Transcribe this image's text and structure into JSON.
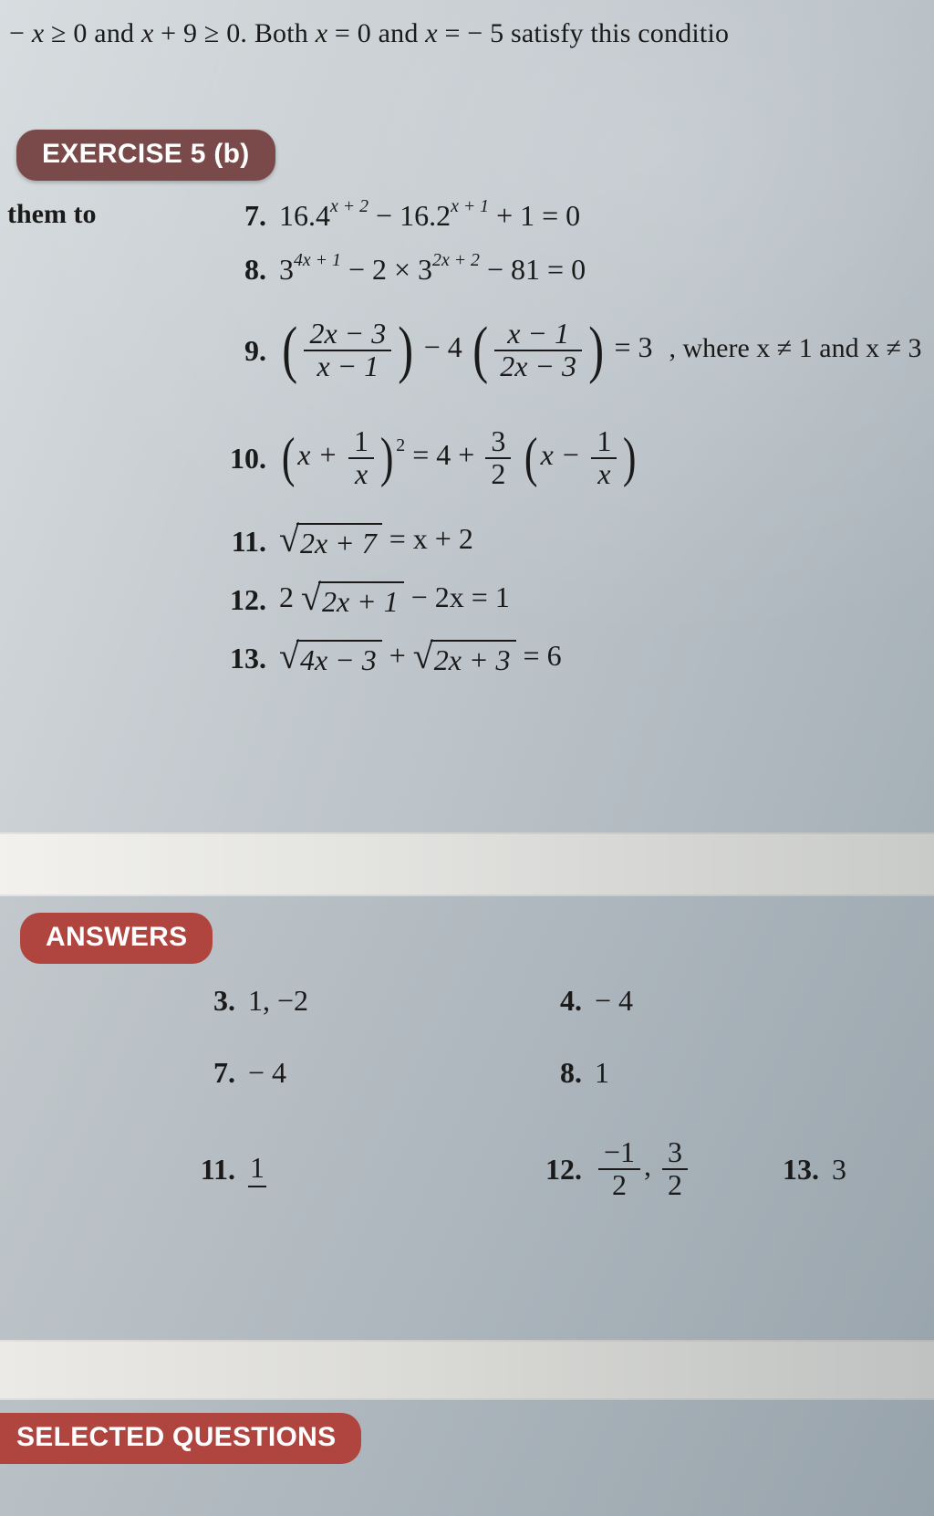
{
  "colors": {
    "text": "#1a1a1a",
    "pill_exercise_bg": "#7a4a4a",
    "pill_answers_bg": "#b0443f",
    "pill_text": "#ffffff"
  },
  "typography": {
    "body_family": "Times New Roman",
    "body_size_pt": 24,
    "pill_family": "Arial",
    "pill_weight": 700
  },
  "top_condition": {
    "line1_prefix": "− ",
    "line1_mid": " ≥ 0 and ",
    "line1_suffix": " + 9 ≥ 0. Both ",
    "eq1": " = 0 and ",
    "eq2": " = − 5 satisfy this conditio"
  },
  "labels": {
    "exercise": "EXERCISE 5 (b)",
    "them_to": "them to",
    "answers": "ANSWERS",
    "selected": "SELECTED QUESTIONS"
  },
  "problems": {
    "p7": {
      "num": "7.",
      "a": "16.4",
      "exp1": "x + 2",
      "b": " − 16.2",
      "exp2": "x + 1",
      "c": " + 1 = 0"
    },
    "p8": {
      "num": "8.",
      "a": "3",
      "exp1": "4x + 1",
      "b": " − 2 × 3",
      "exp2": "2x + 2",
      "c": " − 81 = 0"
    },
    "p9": {
      "num": "9.",
      "f1n": "2x − 3",
      "f1d": "x − 1",
      "mid": " − 4",
      "f2n": "x − 1",
      "f2d": "2x − 3",
      "rhs": " = 3",
      "where": ", where x ≠ 1 and x ≠ 3"
    },
    "p10": {
      "num": "10.",
      "lhs_inner_a": "x + ",
      "lhs_frac_n": "1",
      "lhs_frac_d": "x",
      "lhs_pow": "2",
      "eq": " = 4 + ",
      "r_frac_n": "3",
      "r_frac_d": "2",
      "r_inner_a": "x − ",
      "r_frac2_n": "1",
      "r_frac2_d": "x"
    },
    "p11": {
      "num": "11.",
      "rad": "2x + 7",
      "rhs": " = x + 2"
    },
    "p12": {
      "num": "12.",
      "pre": "2",
      "rad": "2x + 1",
      "rhs": " − 2x = 1"
    },
    "p13": {
      "num": "13.",
      "rad1": "4x − 3",
      "mid": " + ",
      "rad2": "2x + 3",
      "rhs": " = 6"
    }
  },
  "answers": {
    "a3": {
      "num": "3.",
      "val": "1, −2"
    },
    "a4": {
      "num": "4.",
      "val": "− 4"
    },
    "a7": {
      "num": "7.",
      "val": "− 4"
    },
    "a8": {
      "num": "8.",
      "val": "1"
    },
    "a11": {
      "num": "11.",
      "val": "1"
    },
    "a12": {
      "num": "12.",
      "f1n": "−1",
      "f1d": "2",
      "sep": ", ",
      "f2n": "3",
      "f2d": "2"
    },
    "a13": {
      "num": "13.",
      "val": "3"
    }
  }
}
